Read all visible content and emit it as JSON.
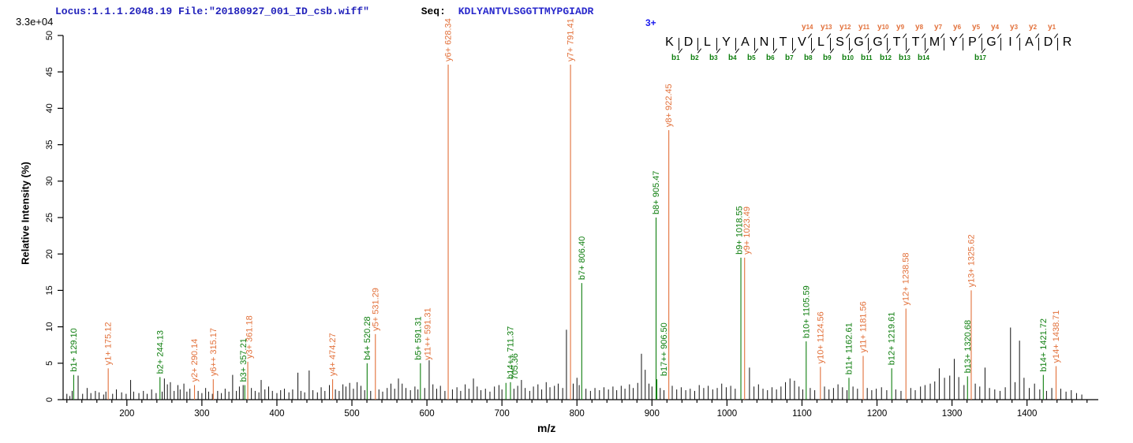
{
  "header": {
    "locus_file": "Locus:1.1.1.2048.19 File:\"20180927_001_ID_csb.wiff\"",
    "seq_label": "Seq:",
    "seq_value": "KDLYANTVLSGGTTMYPGIADR",
    "max_intensity": "3.3e+04",
    "precursor_charge": "3+"
  },
  "colors": {
    "b_ion": "#0e7e0e",
    "y_ion": "#e2703a",
    "background_peak": "#111111",
    "axis": "#000000",
    "header_blue": "#2222bb",
    "sequence_blue": "#2929cc"
  },
  "sequence": {
    "residues": [
      "K",
      "D",
      "L",
      "Y",
      "A",
      "N",
      "T",
      "V",
      "L",
      "S",
      "G",
      "G",
      "T",
      "T",
      "M",
      "Y",
      "P",
      "G",
      "I",
      "A",
      "D",
      "R"
    ],
    "dividers": [
      {
        "after": 1,
        "b": "b1",
        "y": null
      },
      {
        "after": 2,
        "b": "b2",
        "y": null
      },
      {
        "after": 3,
        "b": "b3",
        "y": null
      },
      {
        "after": 4,
        "b": "b4",
        "y": null
      },
      {
        "after": 5,
        "b": "b5",
        "y": null
      },
      {
        "after": 6,
        "b": "b6",
        "y": null
      },
      {
        "after": 7,
        "b": "b7",
        "y": null
      },
      {
        "after": 8,
        "b": "b8",
        "y": "y14"
      },
      {
        "after": 9,
        "b": "b9",
        "y": "y13"
      },
      {
        "after": 10,
        "b": "b10",
        "y": "y12"
      },
      {
        "after": 11,
        "b": "b11",
        "y": "y11"
      },
      {
        "after": 12,
        "b": "b12",
        "y": "y10"
      },
      {
        "after": 13,
        "b": "b13",
        "y": "y9"
      },
      {
        "after": 14,
        "b": "b14",
        "y": "y8"
      },
      {
        "after": 15,
        "b": null,
        "y": "y7"
      },
      {
        "after": 16,
        "b": null,
        "y": "y6"
      },
      {
        "after": 17,
        "b": "b17",
        "y": "y5"
      },
      {
        "after": 18,
        "b": null,
        "y": "y4"
      },
      {
        "after": 19,
        "b": null,
        "y": "y3"
      },
      {
        "after": 20,
        "b": null,
        "y": "y2"
      },
      {
        "after": 21,
        "b": null,
        "y": "y1"
      }
    ]
  },
  "chart_data": {
    "type": "bar",
    "subtype": "ms2-fragment-stick-spectrum",
    "title": "",
    "xlabel": "m/z",
    "ylabel": "Relative  Intensity (%)",
    "xlim": [
      115,
      1495
    ],
    "ylim": [
      0,
      50
    ],
    "y_axis_top_annotation": "3.3e+04",
    "y_ticks": [
      0,
      5,
      10,
      15,
      20,
      25,
      30,
      35,
      40,
      45,
      50
    ],
    "x_major_ticks": [
      200,
      300,
      400,
      500,
      600,
      700,
      800,
      900,
      1000,
      1100,
      1200,
      1300,
      1400
    ],
    "x_minor_step": 20,
    "grid": false,
    "legend": "none",
    "labeled_peaks": [
      {
        "label": "b1+ 129.10",
        "ion": "b1+",
        "mz": 129.1,
        "intensity_pct": 3.4,
        "series": "b"
      },
      {
        "label": "y1+ 175.12",
        "ion": "y1+",
        "mz": 175.12,
        "intensity_pct": 4.3,
        "series": "y"
      },
      {
        "label": "b2+ 244.13",
        "ion": "b2+",
        "mz": 244.13,
        "intensity_pct": 3.1,
        "series": "b"
      },
      {
        "label": "y2+ 290.14",
        "ion": "y2+",
        "mz": 290.14,
        "intensity_pct": 2.0,
        "series": "y"
      },
      {
        "label": "y6++ 315.17",
        "ion": "y6++",
        "mz": 315.17,
        "intensity_pct": 2.8,
        "series": "y"
      },
      {
        "label": "b3+ 357.21",
        "ion": "b3+",
        "mz": 357.21,
        "intensity_pct": 2.0,
        "series": "b",
        "label_dx": -2
      },
      {
        "label": "y3+ 361.18",
        "ion": "y3+",
        "mz": 361.18,
        "intensity_pct": 5.2,
        "series": "y",
        "label_dx": 2
      },
      {
        "label": "y4+ 474.27",
        "ion": "y4+",
        "mz": 474.27,
        "intensity_pct": 2.8,
        "series": "y"
      },
      {
        "label": "b4+ 520.28",
        "ion": "b4+",
        "mz": 520.28,
        "intensity_pct": 5.0,
        "series": "b"
      },
      {
        "label": "y5+ 531.29",
        "ion": "y5+",
        "mz": 531.29,
        "intensity_pct": 9.0,
        "series": "y"
      },
      {
        "label": "b5+ 591.31",
        "ion": "b5+",
        "mz": 591.31,
        "intensity_pct": 5.0,
        "series": "b",
        "label_dx": -3
      },
      {
        "label": "y11++ 591.31",
        "ion": "y11++",
        "mz": 591.31,
        "intensity_pct": 5.0,
        "series": "y",
        "label_dx": 9,
        "share_line": true
      },
      {
        "label": "y6+ 628.34",
        "ion": "y6+",
        "mz": 628.34,
        "intensity_pct": 46.0,
        "series": "y"
      },
      {
        "label": "705.36",
        "ion": "",
        "mz": 705.36,
        "intensity_pct": 2.3,
        "series": "b",
        "label_dx": 11
      },
      {
        "label": "b14++ 711.37",
        "ion": "b14++",
        "mz": 711.37,
        "intensity_pct": 2.4,
        "series": "b"
      },
      {
        "label": "y7+ 791.41",
        "ion": "y7+",
        "mz": 791.41,
        "intensity_pct": 46.0,
        "series": "y"
      },
      {
        "label": "b7+ 806.40",
        "ion": "b7+",
        "mz": 806.4,
        "intensity_pct": 16.0,
        "series": "b"
      },
      {
        "label": "b8+ 905.47",
        "ion": "b8+",
        "mz": 905.47,
        "intensity_pct": 25.0,
        "series": "b"
      },
      {
        "label": "b17++ 906.50",
        "ion": "b17++",
        "mz": 906.5,
        "intensity_pct": 2.8,
        "series": "b",
        "label_dx": 9
      },
      {
        "label": "y8+ 922.45",
        "ion": "y8+",
        "mz": 922.45,
        "intensity_pct": 37.0,
        "series": "y"
      },
      {
        "label": "b9+ 1018.55",
        "ion": "b9+",
        "mz": 1018.55,
        "intensity_pct": 19.5,
        "series": "b",
        "label_dx": -2
      },
      {
        "label": "y9+ 1023.49",
        "ion": "y9+",
        "mz": 1023.49,
        "intensity_pct": 19.5,
        "series": "y",
        "label_dx": 3
      },
      {
        "label": "b10+ 1105.59",
        "ion": "b10+",
        "mz": 1105.59,
        "intensity_pct": 8.0,
        "series": "b"
      },
      {
        "label": "y10+ 1124.56",
        "ion": "y10+",
        "mz": 1124.56,
        "intensity_pct": 4.5,
        "series": "y"
      },
      {
        "label": "b11+ 1162.61",
        "ion": "b11+",
        "mz": 1162.61,
        "intensity_pct": 3.0,
        "series": "b"
      },
      {
        "label": "y11+ 1181.56",
        "ion": "y11+",
        "mz": 1181.56,
        "intensity_pct": 6.0,
        "series": "y"
      },
      {
        "label": "b12+ 1219.61",
        "ion": "b12+",
        "mz": 1219.61,
        "intensity_pct": 4.3,
        "series": "b"
      },
      {
        "label": "y12+ 1238.58",
        "ion": "y12+",
        "mz": 1238.58,
        "intensity_pct": 12.5,
        "series": "y"
      },
      {
        "label": "b13+ 1320.68",
        "ion": "b13+",
        "mz": 1320.68,
        "intensity_pct": 3.2,
        "series": "b"
      },
      {
        "label": "y13+ 1325.62",
        "ion": "y13+",
        "mz": 1325.62,
        "intensity_pct": 15.0,
        "series": "y"
      },
      {
        "label": "b14+ 1421.72",
        "ion": "b14+",
        "mz": 1421.72,
        "intensity_pct": 3.4,
        "series": "b"
      },
      {
        "label": "y14+ 1438.71",
        "ion": "y14+",
        "mz": 1438.71,
        "intensity_pct": 4.6,
        "series": "y"
      }
    ],
    "background_peaks": [
      [
        120,
        0.8
      ],
      [
        124,
        0.5
      ],
      [
        127,
        1.2
      ],
      [
        135,
        3.3
      ],
      [
        141,
        0.8
      ],
      [
        147,
        1.6
      ],
      [
        152,
        0.9
      ],
      [
        158,
        1.2
      ],
      [
        163,
        1.0
      ],
      [
        169,
        0.7
      ],
      [
        172,
        1.1
      ],
      [
        181,
        0.8
      ],
      [
        186,
        1.4
      ],
      [
        193,
        1.0
      ],
      [
        199,
        0.8
      ],
      [
        205,
        2.7
      ],
      [
        209,
        1.1
      ],
      [
        216,
        0.9
      ],
      [
        222,
        1.2
      ],
      [
        227,
        0.8
      ],
      [
        233,
        1.4
      ],
      [
        239,
        0.9
      ],
      [
        247,
        1.1
      ],
      [
        250,
        2.9
      ],
      [
        254,
        2.1
      ],
      [
        258,
        2.4
      ],
      [
        263,
        1.2
      ],
      [
        268,
        2.0
      ],
      [
        271,
        1.4
      ],
      [
        276,
        2.2
      ],
      [
        280,
        1.1
      ],
      [
        284,
        1.5
      ],
      [
        295,
        1.2
      ],
      [
        300,
        0.9
      ],
      [
        305,
        1.6
      ],
      [
        309,
        1.1
      ],
      [
        314,
        0.8
      ],
      [
        321,
        1.2
      ],
      [
        326,
        0.9
      ],
      [
        331,
        1.5
      ],
      [
        336,
        1.1
      ],
      [
        341,
        3.4
      ],
      [
        346,
        1.2
      ],
      [
        350,
        1.8
      ],
      [
        355,
        2.0
      ],
      [
        366,
        1.6
      ],
      [
        371,
        1.2
      ],
      [
        376,
        1.0
      ],
      [
        379,
        2.7
      ],
      [
        384,
        1.4
      ],
      [
        389,
        1.8
      ],
      [
        394,
        1.2
      ],
      [
        400,
        0.9
      ],
      [
        405,
        1.3
      ],
      [
        410,
        1.5
      ],
      [
        416,
        1.0
      ],
      [
        421,
        1.4
      ],
      [
        428,
        3.7
      ],
      [
        432,
        1.2
      ],
      [
        437,
        1.0
      ],
      [
        443,
        4.0
      ],
      [
        448,
        1.3
      ],
      [
        454,
        1.0
      ],
      [
        459,
        1.7
      ],
      [
        464,
        1.2
      ],
      [
        470,
        2.0
      ],
      [
        478,
        1.4
      ],
      [
        483,
        1.2
      ],
      [
        488,
        2.1
      ],
      [
        492,
        1.8
      ],
      [
        497,
        2.3
      ],
      [
        502,
        1.5
      ],
      [
        507,
        2.4
      ],
      [
        512,
        1.9
      ],
      [
        517,
        1.3
      ],
      [
        525,
        1.2
      ],
      [
        536,
        1.4
      ],
      [
        541,
        1.1
      ],
      [
        547,
        1.6
      ],
      [
        552,
        2.2
      ],
      [
        557,
        1.5
      ],
      [
        562,
        2.9
      ],
      [
        567,
        2.2
      ],
      [
        572,
        1.6
      ],
      [
        578,
        1.3
      ],
      [
        584,
        1.8
      ],
      [
        588,
        1.4
      ],
      [
        597,
        1.6
      ],
      [
        603,
        5.4
      ],
      [
        608,
        2.1
      ],
      [
        613,
        1.5
      ],
      [
        618,
        1.9
      ],
      [
        624,
        1.2
      ],
      [
        634,
        1.4
      ],
      [
        640,
        1.7
      ],
      [
        645,
        1.2
      ],
      [
        651,
        2.1
      ],
      [
        656,
        1.5
      ],
      [
        662,
        2.9
      ],
      [
        667,
        1.8
      ],
      [
        672,
        1.3
      ],
      [
        678,
        1.5
      ],
      [
        684,
        1.1
      ],
      [
        690,
        1.8
      ],
      [
        696,
        2.0
      ],
      [
        700,
        1.4
      ],
      [
        716,
        1.5
      ],
      [
        721,
        1.9
      ],
      [
        726,
        2.7
      ],
      [
        731,
        1.6
      ],
      [
        737,
        1.2
      ],
      [
        742,
        1.8
      ],
      [
        748,
        2.1
      ],
      [
        753,
        1.4
      ],
      [
        759,
        2.4
      ],
      [
        764,
        1.7
      ],
      [
        770,
        1.9
      ],
      [
        775,
        2.2
      ],
      [
        781,
        1.6
      ],
      [
        786,
        9.6
      ],
      [
        795,
        2.2
      ],
      [
        800,
        3.0
      ],
      [
        803,
        2.0
      ],
      [
        812,
        1.5
      ],
      [
        818,
        1.2
      ],
      [
        824,
        1.6
      ],
      [
        830,
        1.3
      ],
      [
        836,
        1.7
      ],
      [
        842,
        1.4
      ],
      [
        848,
        1.8
      ],
      [
        853,
        1.3
      ],
      [
        859,
        1.9
      ],
      [
        864,
        1.5
      ],
      [
        870,
        2.1
      ],
      [
        875,
        1.6
      ],
      [
        881,
        2.3
      ],
      [
        886,
        6.3
      ],
      [
        891,
        4.1
      ],
      [
        896,
        2.2
      ],
      [
        900,
        1.8
      ],
      [
        911,
        1.6
      ],
      [
        916,
        1.3
      ],
      [
        927,
        1.9
      ],
      [
        933,
        1.4
      ],
      [
        939,
        1.7
      ],
      [
        945,
        1.3
      ],
      [
        951,
        1.5
      ],
      [
        957,
        1.2
      ],
      [
        963,
        2.0
      ],
      [
        969,
        1.6
      ],
      [
        975,
        1.9
      ],
      [
        981,
        1.4
      ],
      [
        987,
        1.6
      ],
      [
        993,
        2.2
      ],
      [
        999,
        1.7
      ],
      [
        1005,
        1.9
      ],
      [
        1011,
        1.5
      ],
      [
        1030,
        4.4
      ],
      [
        1036,
        1.8
      ],
      [
        1042,
        2.1
      ],
      [
        1048,
        1.5
      ],
      [
        1054,
        1.3
      ],
      [
        1060,
        1.7
      ],
      [
        1066,
        1.4
      ],
      [
        1072,
        1.8
      ],
      [
        1078,
        2.4
      ],
      [
        1084,
        2.9
      ],
      [
        1090,
        2.6
      ],
      [
        1096,
        1.8
      ],
      [
        1101,
        1.4
      ],
      [
        1111,
        1.6
      ],
      [
        1117,
        1.3
      ],
      [
        1130,
        1.8
      ],
      [
        1136,
        1.4
      ],
      [
        1142,
        1.6
      ],
      [
        1148,
        2.1
      ],
      [
        1154,
        1.7
      ],
      [
        1160,
        1.3
      ],
      [
        1168,
        1.8
      ],
      [
        1174,
        1.5
      ],
      [
        1187,
        1.6
      ],
      [
        1193,
        1.3
      ],
      [
        1199,
        1.5
      ],
      [
        1206,
        1.7
      ],
      [
        1213,
        1.3
      ],
      [
        1225,
        1.4
      ],
      [
        1232,
        1.2
      ],
      [
        1245,
        1.6
      ],
      [
        1251,
        1.3
      ],
      [
        1258,
        1.8
      ],
      [
        1264,
        2.0
      ],
      [
        1271,
        2.2
      ],
      [
        1277,
        2.5
      ],
      [
        1283,
        4.3
      ],
      [
        1290,
        3.0
      ],
      [
        1297,
        3.3
      ],
      [
        1303,
        5.6
      ],
      [
        1309,
        3.1
      ],
      [
        1316,
        2.0
      ],
      [
        1331,
        2.2
      ],
      [
        1337,
        1.8
      ],
      [
        1344,
        4.4
      ],
      [
        1350,
        1.6
      ],
      [
        1357,
        1.4
      ],
      [
        1364,
        1.2
      ],
      [
        1371,
        1.7
      ],
      [
        1378,
        9.9
      ],
      [
        1384,
        2.4
      ],
      [
        1390,
        8.1
      ],
      [
        1396,
        3.0
      ],
      [
        1403,
        1.6
      ],
      [
        1410,
        2.2
      ],
      [
        1417,
        1.4
      ],
      [
        1426,
        1.2
      ],
      [
        1433,
        1.6
      ],
      [
        1445,
        1.5
      ],
      [
        1452,
        1.1
      ],
      [
        1459,
        1.3
      ],
      [
        1466,
        0.9
      ],
      [
        1473,
        0.7
      ]
    ]
  }
}
